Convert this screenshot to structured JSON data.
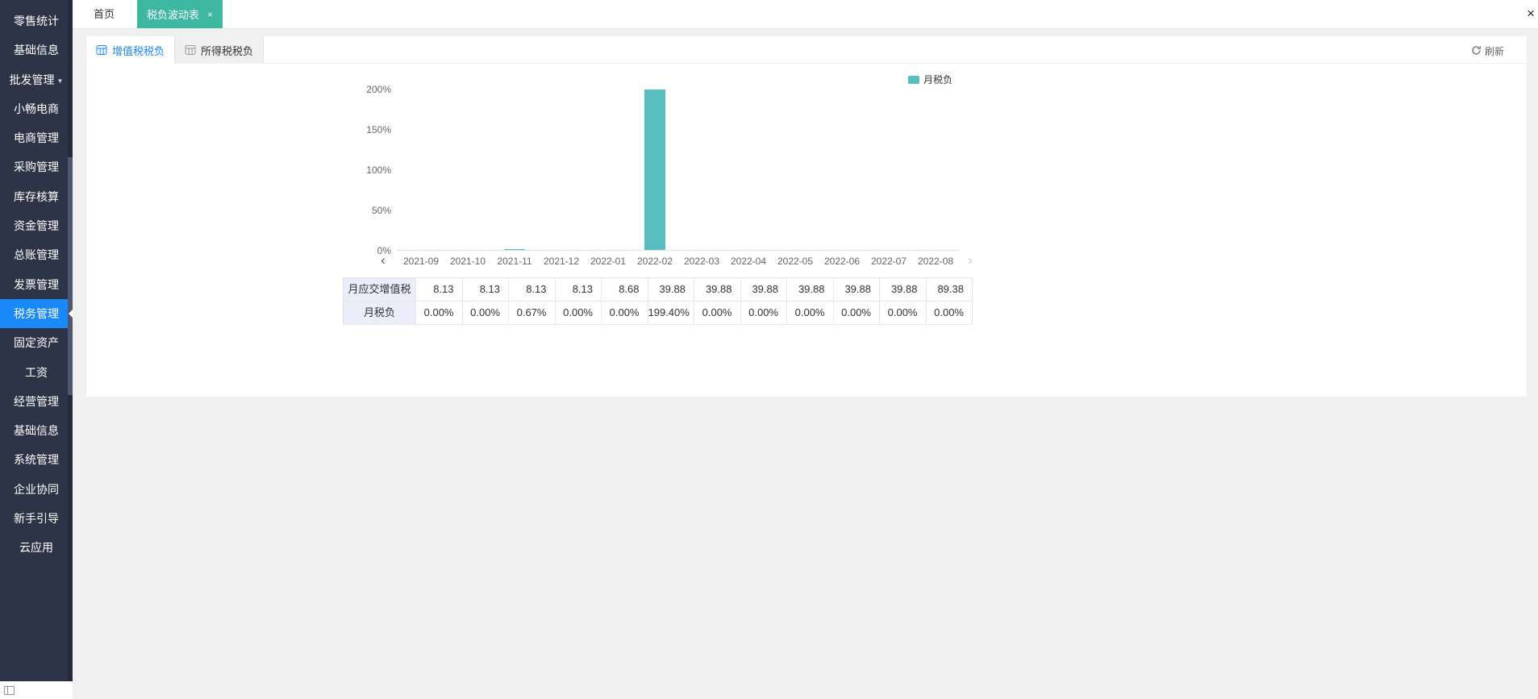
{
  "window": {
    "close_label": "×"
  },
  "colors": {
    "sidebar_bg": "#2e3447",
    "accent_blue": "#1989fa",
    "tab_teal": "#3eb7a0",
    "bar_teal": "#57bdbe"
  },
  "sidebar": {
    "items": [
      "零售统计",
      "基础信息",
      "批发管理",
      "小畅电商",
      "电商管理",
      "采购管理",
      "库存核算",
      "资金管理",
      "总账管理",
      "发票管理",
      "税务管理",
      "固定资产",
      "工资",
      "经营管理",
      "基础信息",
      "系统管理",
      "企业协同",
      "新手引导",
      "云应用"
    ],
    "active_index": 10,
    "caret_index": 2,
    "caret_glyph": "▼"
  },
  "tabbar": {
    "home_tab": "首页",
    "active_tab": "税负波动表",
    "close_label": "×"
  },
  "panel": {
    "tabs": [
      {
        "label": "增值税税负",
        "active": true
      },
      {
        "label": "所得税税负",
        "active": false
      }
    ],
    "refresh_label": "刷新"
  },
  "chart_data": {
    "type": "bar",
    "title": "",
    "categories": [
      "2021-09",
      "2021-10",
      "2021-11",
      "2021-12",
      "2022-01",
      "2022-02",
      "2022-03",
      "2022-04",
      "2022-05",
      "2022-06",
      "2022-07",
      "2022-08"
    ],
    "series": [
      {
        "name": "月税负",
        "values": [
          0,
          0,
          0.67,
          0,
          0,
          199.4,
          0,
          0,
          0,
          0,
          0,
          0
        ]
      }
    ],
    "ylim": [
      0,
      200
    ],
    "ytick_labels": [
      "0%",
      "50%",
      "100%",
      "150%",
      "200%"
    ],
    "legend": [
      "月税负"
    ],
    "legend_position": "top-right",
    "grid": false,
    "prev_arrow": "‹",
    "next_arrow": "›"
  },
  "table": {
    "rows": [
      {
        "header": "月应交增值税",
        "values": [
          "8.13",
          "8.13",
          "8.13",
          "8.13",
          "8.68",
          "39.88",
          "39.88",
          "39.88",
          "39.88",
          "39.88",
          "39.88",
          "89.38"
        ]
      },
      {
        "header": "月税负",
        "values": [
          "0.00%",
          "0.00%",
          "0.67%",
          "0.00%",
          "0.00%",
          "199.40%",
          "0.00%",
          "0.00%",
          "0.00%",
          "0.00%",
          "0.00%",
          "0.00%"
        ]
      }
    ]
  }
}
